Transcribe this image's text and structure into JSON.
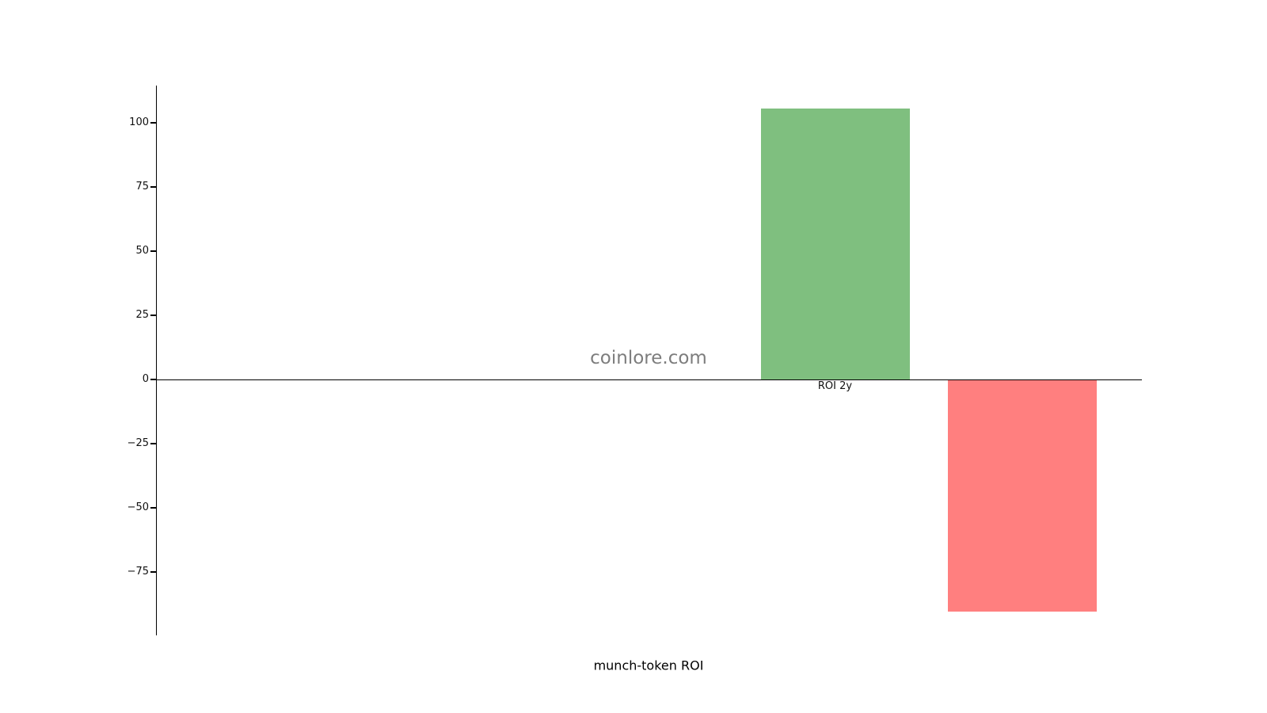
{
  "watermark": {
    "text": "coinlore.com",
    "color": "#7d7d7d"
  },
  "chart_data": {
    "type": "bar",
    "title": "",
    "xlabel": "munch-token ROI",
    "ylabel": "",
    "categories": [
      "ROI 2y",
      ""
    ],
    "values": [
      105.6,
      -90
    ],
    "bar_colors": [
      "#7fbf7f",
      "#ff7f7f"
    ],
    "yticks": [
      100,
      75,
      50,
      25,
      0,
      -25,
      -50,
      -75
    ],
    "ylim": [
      -100,
      115
    ],
    "grid": false,
    "legend": "none",
    "axis_color": "#000000"
  }
}
